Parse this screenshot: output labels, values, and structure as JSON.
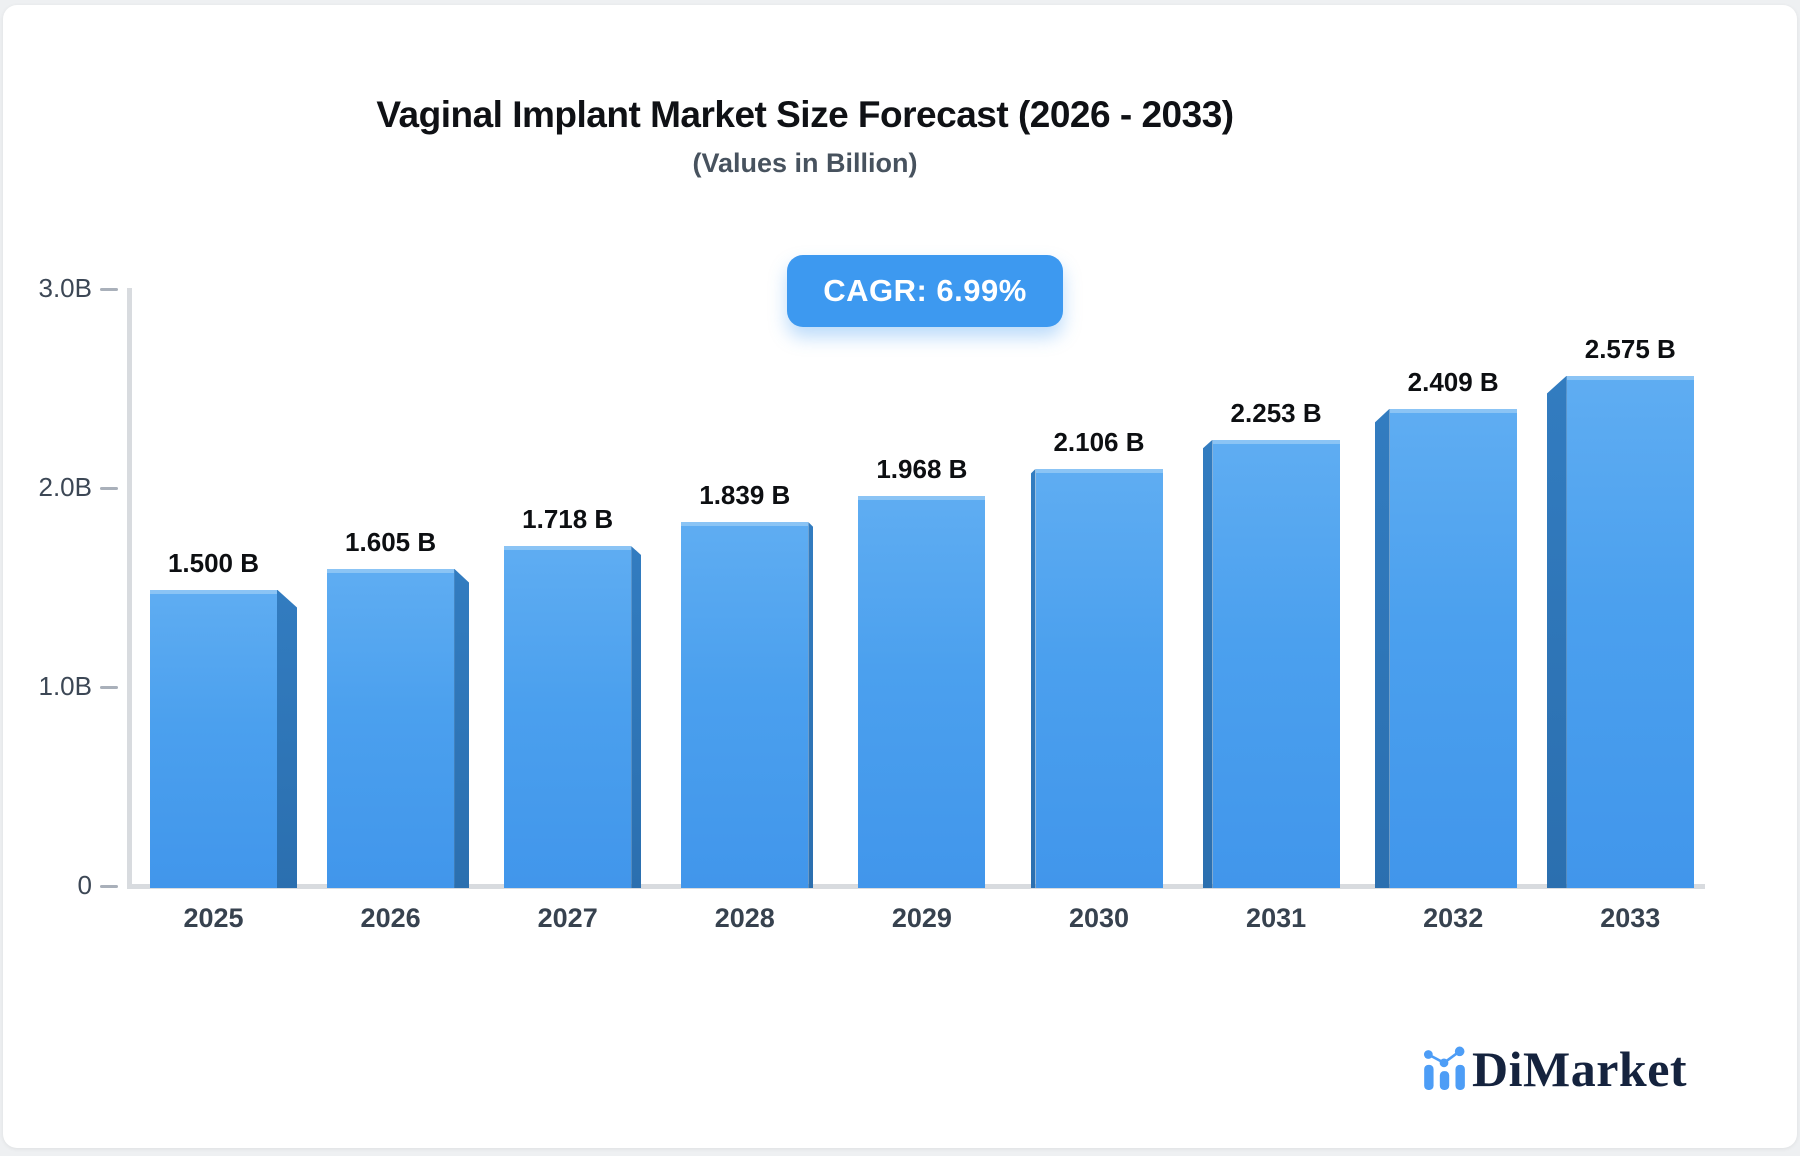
{
  "page": {
    "title": "Vaginal Implant Market Size Forecast (2026 - 2033)",
    "subtitle": "(Values in Billion)",
    "badge_label": "CAGR: 6.99%"
  },
  "chart_data": {
    "type": "bar",
    "title": "Vaginal Implant Market Size Forecast (2026 - 2033)",
    "subtitle": "(Values in Billion)",
    "cagr": "6.99%",
    "categories": [
      "2025",
      "2026",
      "2027",
      "2028",
      "2029",
      "2030",
      "2031",
      "2032",
      "2033"
    ],
    "values": [
      1.5,
      1.605,
      1.718,
      1.839,
      1.968,
      2.106,
      2.253,
      2.409,
      2.575
    ],
    "value_labels": [
      "1.500 B",
      "1.605 B",
      "1.718 B",
      "1.839 B",
      "1.968 B",
      "2.106 B",
      "2.253 B",
      "2.409 B",
      "2.575 B"
    ],
    "xlabel": "",
    "ylabel": "",
    "ylim": [
      0,
      3
    ],
    "yticks": [
      {
        "label": "3.0B",
        "value": 3.0
      },
      {
        "label": "2.0B",
        "value": 2.0
      },
      {
        "label": "1.0B",
        "value": 1.0
      },
      {
        "label": "0",
        "value": 0
      }
    ],
    "grid": false,
    "legend": false,
    "bar_style": "3d-perspective"
  },
  "logo": {
    "text": "DiMarket"
  },
  "colors": {
    "accent_blue": "#3D99F0",
    "bar_face_top": "#5FADF2",
    "bar_face_bottom": "#4196EB",
    "bar_side": "#2C72B5",
    "axis_line": "#D8DBDF",
    "tick_dash": "#A9B0BA",
    "axis_text": "#3C4755",
    "value_text": "#0D0F12",
    "title_text": "#0F1115",
    "subtitle_text": "#47525E",
    "logo_navy": "#15233E",
    "logo_blue": "#4D9DF6",
    "page_bg": "#EEF0F2",
    "card_bg": "#FFFFFF"
  }
}
